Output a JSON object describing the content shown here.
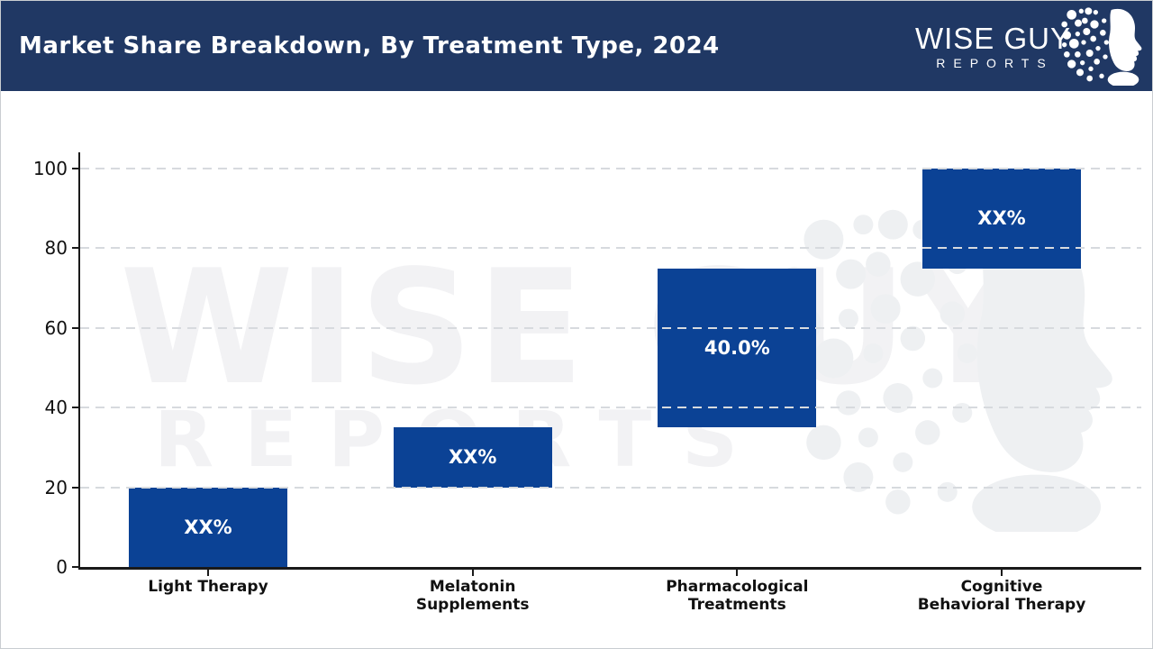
{
  "header": {
    "title": "Market Share Breakdown, By Treatment Type, 2024",
    "logo": {
      "line1": "WISE GUY",
      "line2": "REPORTS"
    }
  },
  "watermark": {
    "line1": "WISE GUY",
    "line2": "REPORTS"
  },
  "colors": {
    "header_bg": "#203864",
    "bar": "#0b4295",
    "gridline": "#d7dade",
    "axis": "#1a1a1a",
    "bar_label": "#ffffff",
    "watermark_text": "#f2f2f4",
    "watermark_face": "#eef0f2"
  },
  "chart_data": {
    "type": "bar",
    "subtype": "waterfall-stacked-segments",
    "title": "Market Share Breakdown, By Treatment Type, 2024",
    "categories": [
      "Light Therapy",
      "Melatonin Supplements",
      "Pharmacological Treatments",
      "Cognitive Behavioral Therapy"
    ],
    "category_lines": [
      [
        "Light Therapy"
      ],
      [
        "Melatonin",
        "Supplements"
      ],
      [
        "Pharmacological",
        "Treatments"
      ],
      [
        "Cognitive",
        "Behavioral Therapy"
      ]
    ],
    "segments": [
      {
        "category": "Light Therapy",
        "start": 0,
        "end": 20,
        "value": 20,
        "label": "XX%"
      },
      {
        "category": "Melatonin Supplements",
        "start": 20,
        "end": 35,
        "value": 15,
        "label": "XX%"
      },
      {
        "category": "Pharmacological Treatments",
        "start": 35,
        "end": 75,
        "value": 40,
        "label": "40.0%"
      },
      {
        "category": "Cognitive Behavioral Therapy",
        "start": 75,
        "end": 100,
        "value": 25,
        "label": "XX%"
      }
    ],
    "xlabel": "",
    "ylabel": "",
    "ylim": [
      0,
      100
    ],
    "yticks": [
      0,
      20,
      40,
      60,
      80,
      100
    ],
    "grid": "dashed-horizontal",
    "legend": null
  }
}
